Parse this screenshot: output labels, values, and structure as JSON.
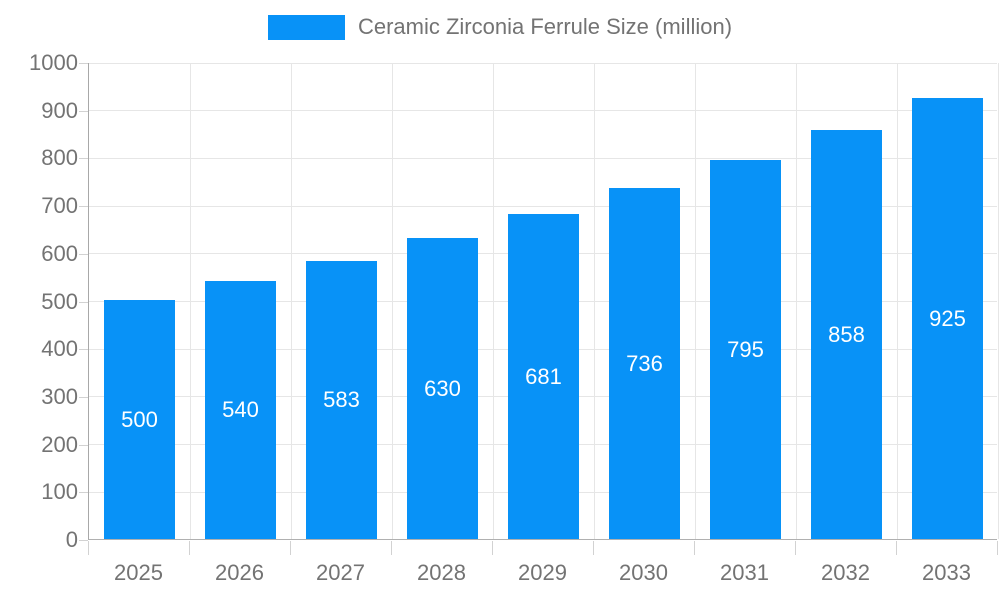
{
  "chart_data": {
    "type": "bar",
    "title": "Ceramic Zirconia Ferrule Size (million)",
    "categories": [
      "2025",
      "2026",
      "2027",
      "2028",
      "2029",
      "2030",
      "2031",
      "2032",
      "2033"
    ],
    "values": [
      500,
      540,
      583,
      630,
      681,
      736,
      795,
      858,
      925
    ],
    "xlabel": "",
    "ylabel": "",
    "ylim": [
      0,
      1000
    ],
    "ytick_step": 100,
    "grid": true,
    "legend_position": "top-center",
    "value_labels": "inside-center"
  },
  "legend": {
    "label": "Ceramic Zirconia Ferrule Size (million)"
  },
  "colors": {
    "bar": "#0892f7",
    "value_label": "#ffffff",
    "grid": "#e6e6e6",
    "axis": "#aaaaaa",
    "tick": "#d2d2d2",
    "text": "#737373"
  }
}
